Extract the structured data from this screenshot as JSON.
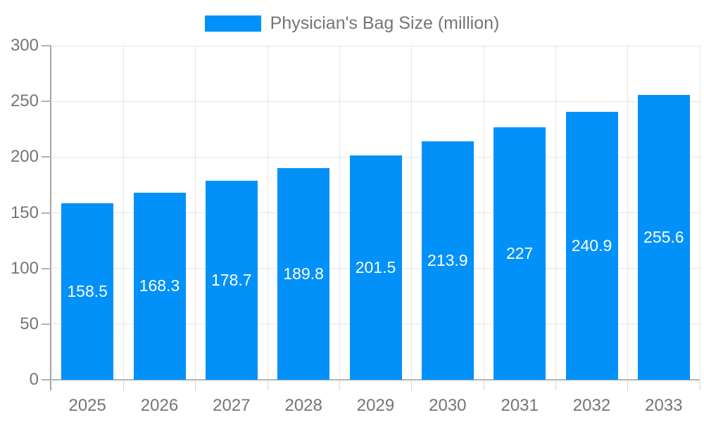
{
  "chart_data": {
    "type": "bar",
    "title": "",
    "legend": {
      "position": "top",
      "label": "Physician's Bag Size (million)"
    },
    "categories": [
      "2025",
      "2026",
      "2027",
      "2028",
      "2029",
      "2030",
      "2031",
      "2032",
      "2033"
    ],
    "values": [
      158.5,
      168.3,
      178.7,
      189.8,
      201.5,
      213.9,
      227,
      240.9,
      255.6
    ],
    "value_labels": [
      "158.5",
      "168.3",
      "178.7",
      "189.8",
      "201.5",
      "213.9",
      "227",
      "240.9",
      "255.6"
    ],
    "xlabel": "",
    "ylabel": "",
    "ylim": [
      0,
      300
    ],
    "yticks": [
      0,
      50,
      100,
      150,
      200,
      250,
      300
    ],
    "grid": true,
    "value_labels_inside_bars": true
  },
  "colors": {
    "bar": "#0291f9",
    "grid": "#e6e6e6",
    "axis": "#a6a6a6",
    "baseline": "#b3b3b3",
    "x_tick": "#d9d9d9",
    "tick_label": "#757575",
    "value_label": "#ffffff",
    "background": "#ffffff"
  }
}
